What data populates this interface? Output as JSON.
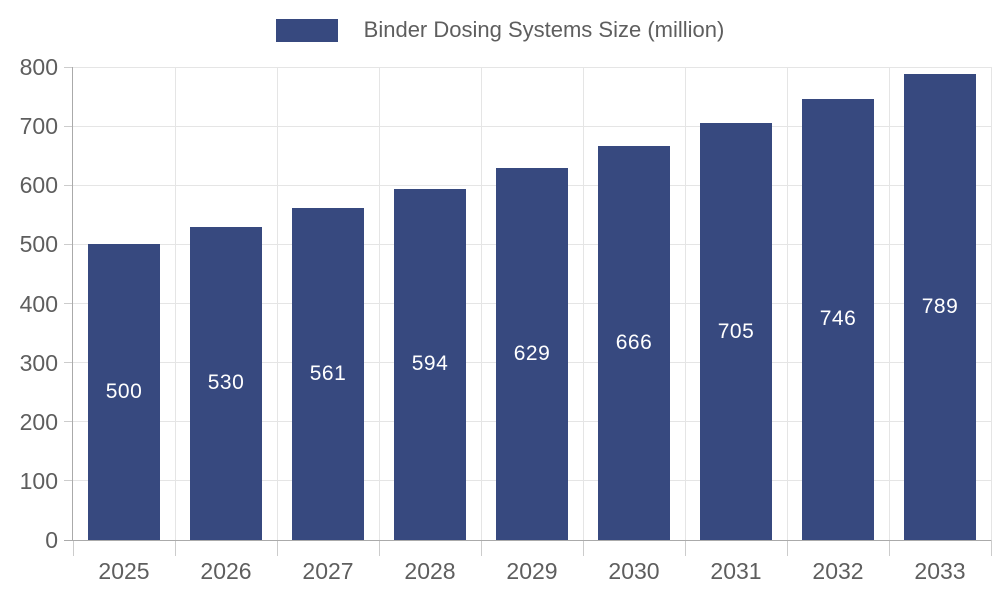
{
  "legend": {
    "label": "Binder Dosing Systems Size (million)"
  },
  "chart_data": {
    "type": "bar",
    "title": "Binder Dosing Systems Size (million)",
    "series_name": "Binder Dosing Systems Size (million)",
    "categories": [
      "2025",
      "2026",
      "2027",
      "2028",
      "2029",
      "2030",
      "2031",
      "2032",
      "2033"
    ],
    "values": [
      500,
      530,
      561,
      594,
      629,
      666,
      705,
      746,
      789
    ],
    "value_labels": [
      "500",
      "530",
      "561",
      "594",
      "629",
      "666",
      "705",
      "746",
      "789"
    ],
    "xlabel": "",
    "ylabel": "",
    "ylim": [
      0,
      800
    ],
    "ytick_step": 100,
    "ytick_labels": [
      "0",
      "100",
      "200",
      "300",
      "400",
      "500",
      "600",
      "700",
      "800"
    ],
    "grid": true,
    "legend_position": "top-center",
    "value_label_position": "inside-center",
    "colors": {
      "bar": "#37497f",
      "value_label": "#ffffff",
      "axis_label": "#5e5e5e",
      "title": "#5e5e5e",
      "grid_line": "#e5e5e5",
      "axis_line": "#aaaaaa",
      "tick": "#cccccc",
      "background": "#ffffff"
    }
  }
}
